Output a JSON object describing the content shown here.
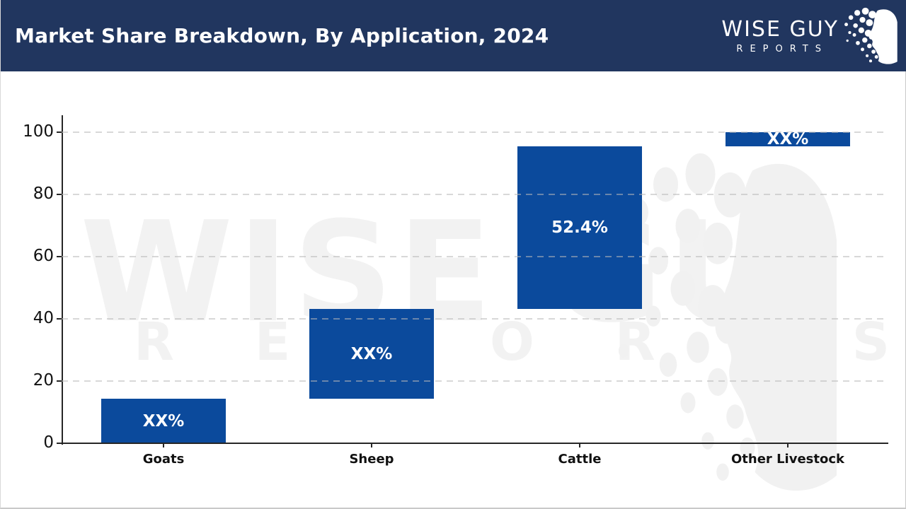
{
  "header": {
    "title": "Market Share Breakdown, By Application, 2024",
    "logo": {
      "line1": "WISE GUY",
      "line2": "REPORTS"
    }
  },
  "watermark": {
    "line1": "WISE GU",
    "line2": "R E P O R T S"
  },
  "colors": {
    "header_bg": "#21365f",
    "bar": "#0b4a9c",
    "title_text": "#ffffff",
    "bar_label_text": "#ffffff",
    "watermark": "#f2f2f2"
  },
  "chart_data": {
    "type": "bar",
    "subtype": "waterfall",
    "title": "Market Share Breakdown, By Application, 2024",
    "xlabel": "",
    "ylabel": "",
    "categories": [
      "Goats",
      "Sheep",
      "Cattle",
      "Other Livestock"
    ],
    "bars": [
      {
        "category": "Goats",
        "start": 0,
        "end": 14.3,
        "value": 14.3,
        "label": "XX%"
      },
      {
        "category": "Sheep",
        "start": 14.3,
        "end": 43.1,
        "value": 28.8,
        "label": "XX%"
      },
      {
        "category": "Cattle",
        "start": 43.1,
        "end": 95.5,
        "value": 52.4,
        "label": "52.4%"
      },
      {
        "category": "Other Livestock",
        "start": 95.5,
        "end": 100,
        "value": 4.5,
        "label": "XX%"
      }
    ],
    "yticks": [
      0,
      20,
      40,
      60,
      80,
      100
    ],
    "ylim": [
      0,
      105.5
    ],
    "grid": "horizontal-dashed",
    "legend": "none",
    "bar_color": "#0b4a9c"
  }
}
